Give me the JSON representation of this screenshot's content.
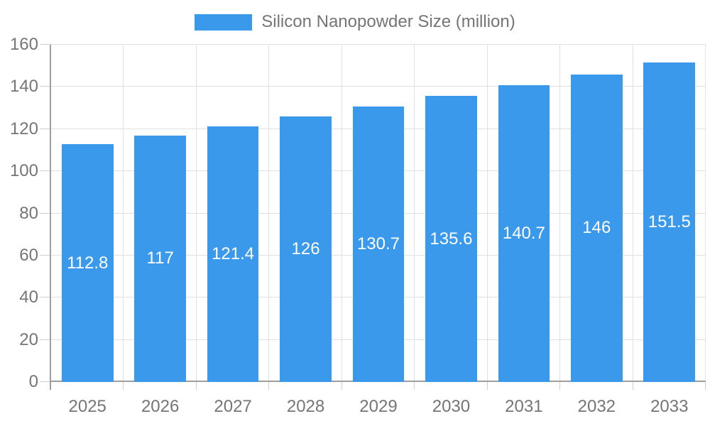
{
  "chart_data": {
    "type": "bar",
    "title": "Silicon Nanopowder Size (million)",
    "categories": [
      "2025",
      "2026",
      "2027",
      "2028",
      "2029",
      "2030",
      "2031",
      "2032",
      "2033"
    ],
    "values": [
      112.8,
      117,
      121.4,
      126,
      130.7,
      135.6,
      140.7,
      146,
      151.5
    ],
    "xlabel": "",
    "ylabel": "",
    "ylim": [
      0,
      160
    ],
    "yticks": [
      0,
      20,
      40,
      60,
      80,
      100,
      120,
      140,
      160
    ],
    "grid": true,
    "legend_position": "top",
    "value_labels": "inside-center",
    "colors": {
      "bar": "#3B99EC",
      "bar_label": "#FFFFFF",
      "grid": "#E0E0E0",
      "tick": "#CFCFCF",
      "axis": "#9E9E9E",
      "text": "#757575",
      "background": "#FFFFFF"
    }
  }
}
